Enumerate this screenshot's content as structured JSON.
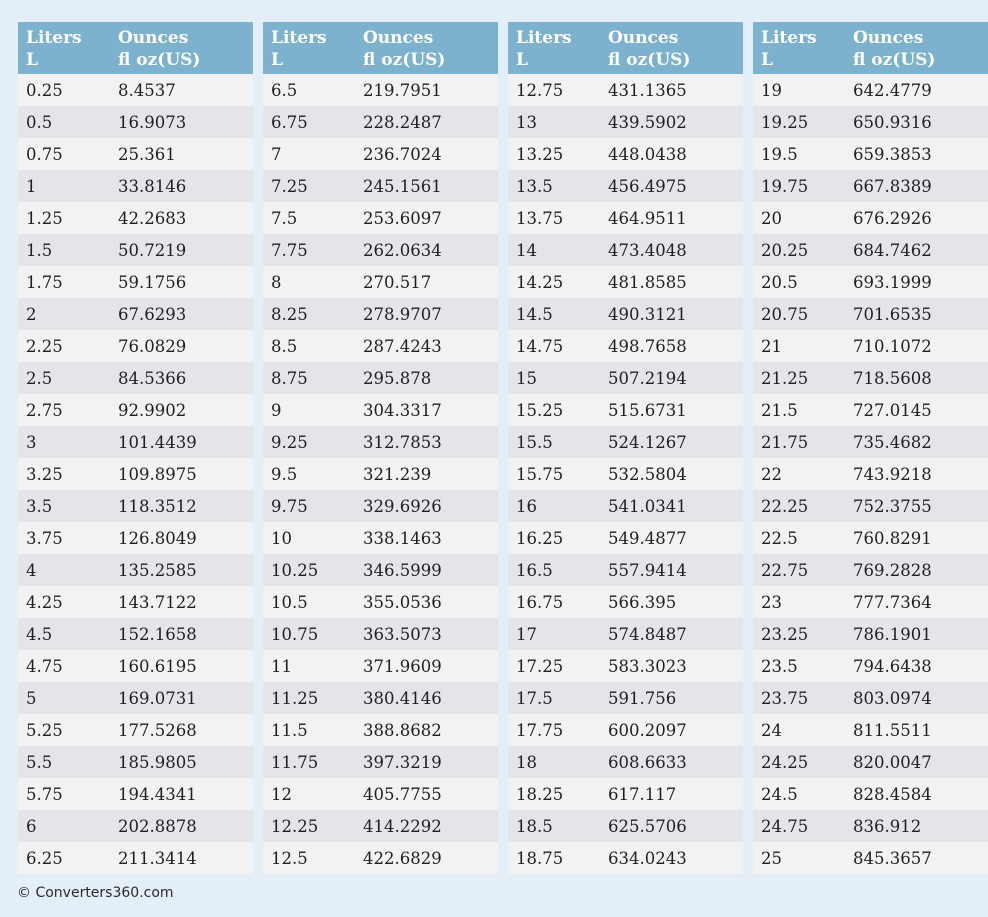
{
  "colors": {
    "page_bg": "#e3eef6",
    "header_bg": "#7cb2cd",
    "header_text": "#ffffff",
    "row_light": "#f2f2f2",
    "row_dark": "#e4e4e9",
    "cell_text": "#1f1f1f"
  },
  "column_headers": {
    "liters_label": "Liters",
    "liters_unit": "L",
    "ounces_label": "Ounces",
    "ounces_unit": "fl oz(US)"
  },
  "footer": {
    "copyright": "© Converters360.com"
  },
  "tables": [
    {
      "rows": [
        [
          "0.25",
          "8.4537"
        ],
        [
          "0.5",
          "16.9073"
        ],
        [
          "0.75",
          "25.361"
        ],
        [
          "1",
          "33.8146"
        ],
        [
          "1.25",
          "42.2683"
        ],
        [
          "1.5",
          "50.7219"
        ],
        [
          "1.75",
          "59.1756"
        ],
        [
          "2",
          "67.6293"
        ],
        [
          "2.25",
          "76.0829"
        ],
        [
          "2.5",
          "84.5366"
        ],
        [
          "2.75",
          "92.9902"
        ],
        [
          "3",
          "101.4439"
        ],
        [
          "3.25",
          "109.8975"
        ],
        [
          "3.5",
          "118.3512"
        ],
        [
          "3.75",
          "126.8049"
        ],
        [
          "4",
          "135.2585"
        ],
        [
          "4.25",
          "143.7122"
        ],
        [
          "4.5",
          "152.1658"
        ],
        [
          "4.75",
          "160.6195"
        ],
        [
          "5",
          "169.0731"
        ],
        [
          "5.25",
          "177.5268"
        ],
        [
          "5.5",
          "185.9805"
        ],
        [
          "5.75",
          "194.4341"
        ],
        [
          "6",
          "202.8878"
        ],
        [
          "6.25",
          "211.3414"
        ]
      ]
    },
    {
      "rows": [
        [
          "6.5",
          "219.7951"
        ],
        [
          "6.75",
          "228.2487"
        ],
        [
          "7",
          "236.7024"
        ],
        [
          "7.25",
          "245.1561"
        ],
        [
          "7.5",
          "253.6097"
        ],
        [
          "7.75",
          "262.0634"
        ],
        [
          "8",
          "270.517"
        ],
        [
          "8.25",
          "278.9707"
        ],
        [
          "8.5",
          "287.4243"
        ],
        [
          "8.75",
          "295.878"
        ],
        [
          "9",
          "304.3317"
        ],
        [
          "9.25",
          "312.7853"
        ],
        [
          "9.5",
          "321.239"
        ],
        [
          "9.75",
          "329.6926"
        ],
        [
          "10",
          "338.1463"
        ],
        [
          "10.25",
          "346.5999"
        ],
        [
          "10.5",
          "355.0536"
        ],
        [
          "10.75",
          "363.5073"
        ],
        [
          "11",
          "371.9609"
        ],
        [
          "11.25",
          "380.4146"
        ],
        [
          "11.5",
          "388.8682"
        ],
        [
          "11.75",
          "397.3219"
        ],
        [
          "12",
          "405.7755"
        ],
        [
          "12.25",
          "414.2292"
        ],
        [
          "12.5",
          "422.6829"
        ]
      ]
    },
    {
      "rows": [
        [
          "12.75",
          "431.1365"
        ],
        [
          "13",
          "439.5902"
        ],
        [
          "13.25",
          "448.0438"
        ],
        [
          "13.5",
          "456.4975"
        ],
        [
          "13.75",
          "464.9511"
        ],
        [
          "14",
          "473.4048"
        ],
        [
          "14.25",
          "481.8585"
        ],
        [
          "14.5",
          "490.3121"
        ],
        [
          "14.75",
          "498.7658"
        ],
        [
          "15",
          "507.2194"
        ],
        [
          "15.25",
          "515.6731"
        ],
        [
          "15.5",
          "524.1267"
        ],
        [
          "15.75",
          "532.5804"
        ],
        [
          "16",
          "541.0341"
        ],
        [
          "16.25",
          "549.4877"
        ],
        [
          "16.5",
          "557.9414"
        ],
        [
          "16.75",
          "566.395"
        ],
        [
          "17",
          "574.8487"
        ],
        [
          "17.25",
          "583.3023"
        ],
        [
          "17.5",
          "591.756"
        ],
        [
          "17.75",
          "600.2097"
        ],
        [
          "18",
          "608.6633"
        ],
        [
          "18.25",
          "617.117"
        ],
        [
          "18.5",
          "625.5706"
        ],
        [
          "18.75",
          "634.0243"
        ]
      ]
    },
    {
      "rows": [
        [
          "19",
          "642.4779"
        ],
        [
          "19.25",
          "650.9316"
        ],
        [
          "19.5",
          "659.3853"
        ],
        [
          "19.75",
          "667.8389"
        ],
        [
          "20",
          "676.2926"
        ],
        [
          "20.25",
          "684.7462"
        ],
        [
          "20.5",
          "693.1999"
        ],
        [
          "20.75",
          "701.6535"
        ],
        [
          "21",
          "710.1072"
        ],
        [
          "21.25",
          "718.5608"
        ],
        [
          "21.5",
          "727.0145"
        ],
        [
          "21.75",
          "735.4682"
        ],
        [
          "22",
          "743.9218"
        ],
        [
          "22.25",
          "752.3755"
        ],
        [
          "22.5",
          "760.8291"
        ],
        [
          "22.75",
          "769.2828"
        ],
        [
          "23",
          "777.7364"
        ],
        [
          "23.25",
          "786.1901"
        ],
        [
          "23.5",
          "794.6438"
        ],
        [
          "23.75",
          "803.0974"
        ],
        [
          "24",
          "811.5511"
        ],
        [
          "24.25",
          "820.0047"
        ],
        [
          "24.5",
          "828.4584"
        ],
        [
          "24.75",
          "836.912"
        ],
        [
          "25",
          "845.3657"
        ]
      ]
    }
  ]
}
